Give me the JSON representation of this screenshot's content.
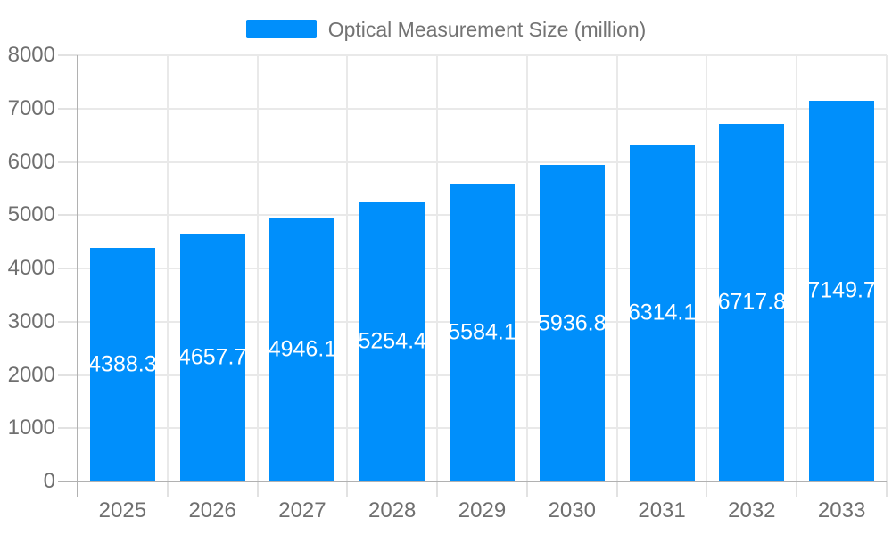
{
  "chart_data": {
    "type": "bar",
    "categories": [
      "2025",
      "2026",
      "2027",
      "2028",
      "2029",
      "2030",
      "2031",
      "2032",
      "2033"
    ],
    "series": [
      {
        "name": "Optical Measurement Size (million)",
        "values": [
          4388.3,
          4657.7,
          4946.1,
          5254.4,
          5584.1,
          5936.8,
          6314.1,
          6717.8,
          7149.7
        ]
      }
    ],
    "title": "Optical Measurement Size (million)",
    "xlabel": "",
    "ylabel": "",
    "ylim": [
      0,
      8000
    ],
    "yticks": [
      0,
      1000,
      2000,
      3000,
      4000,
      5000,
      6000,
      7000,
      8000
    ],
    "legend_position": "top",
    "grid": true,
    "value_labels": "inside-center",
    "colors": {
      "bar": "#008FFB",
      "grid_line": "#e9e9e9",
      "axis_line": "#b1b1b1",
      "tick": "#e2e2e2",
      "axis_label_text": "#6f6f6f",
      "legend_text": "#737373",
      "value_label_text": "#ffffff",
      "background": "#ffffff"
    }
  }
}
